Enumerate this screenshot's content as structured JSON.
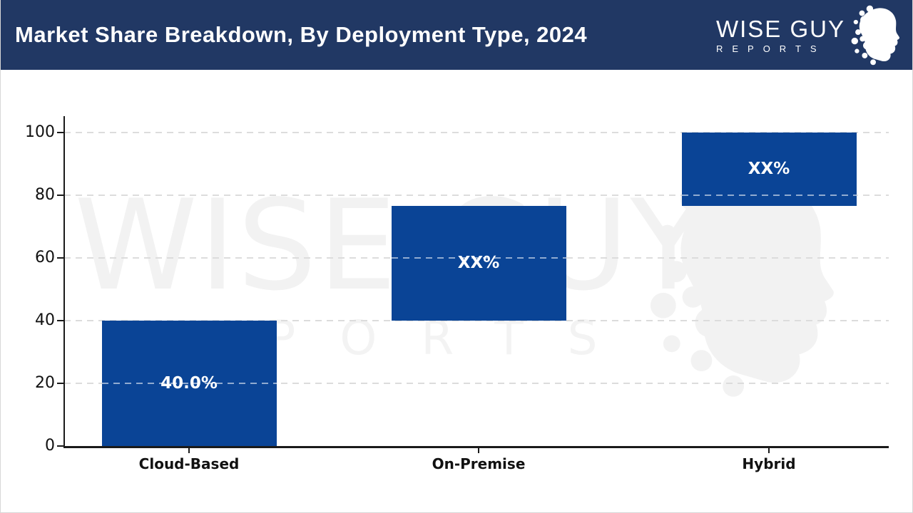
{
  "header": {
    "title": "Market Share Breakdown, By Deployment Type, 2024",
    "brand": {
      "name_top": "WISE GUY",
      "name_bottom": "REPORTS"
    }
  },
  "watermark": {
    "line1": "WISE GUY",
    "line2": "REPORTS"
  },
  "colors": {
    "header_bg": "#213864",
    "bar": "#0a4496",
    "bar_label": "#ffffff",
    "axis": "#1a1a1a",
    "gridline": "#dcdcdc",
    "watermark": "#f2f2f2"
  },
  "chart_data": {
    "type": "bar",
    "subtype": "floating-waterfall",
    "title": "Market Share Breakdown, By Deployment Type, 2024",
    "categories": [
      "Cloud-Based",
      "On-Premise",
      "Hybrid"
    ],
    "segments": [
      {
        "category": "Cloud-Based",
        "start": 0,
        "end": 40,
        "label": "40.0%"
      },
      {
        "category": "On-Premise",
        "start": 40,
        "end": 76.6,
        "label": "XX%"
      },
      {
        "category": "Hybrid",
        "start": 76.6,
        "end": 100,
        "label": "XX%"
      }
    ],
    "xlabel": "",
    "ylabel": "",
    "yticks": [
      0,
      20,
      40,
      60,
      80,
      100
    ],
    "ylim": [
      0,
      105
    ],
    "grid": "horizontal-dashed",
    "legend": "none"
  }
}
